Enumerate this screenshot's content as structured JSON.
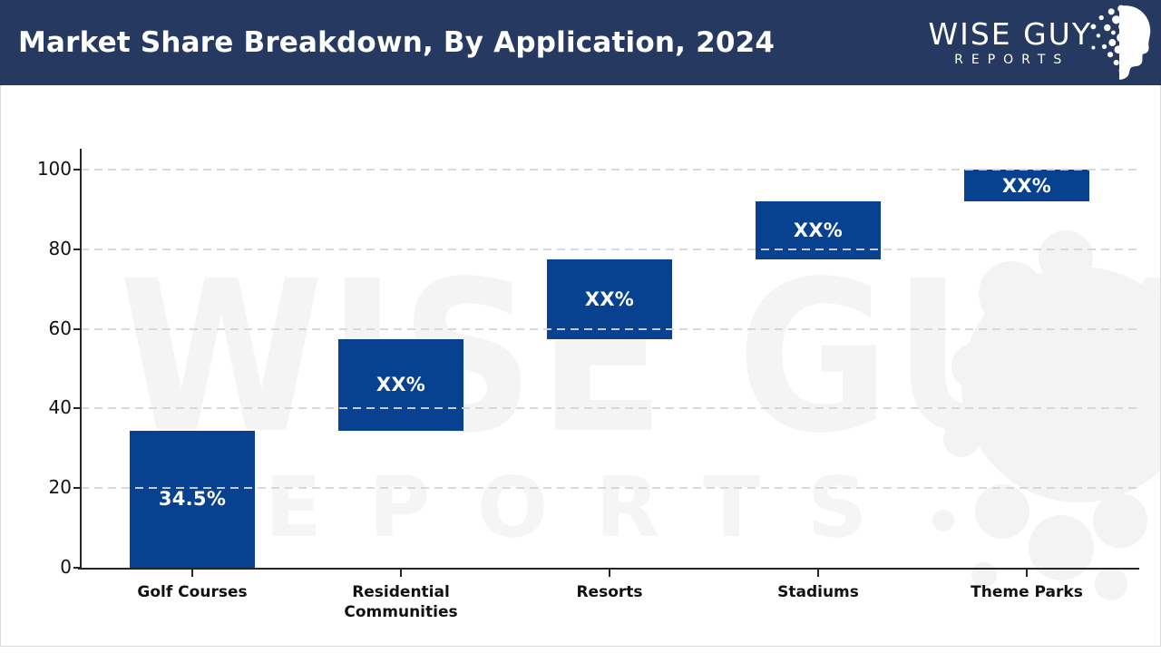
{
  "header": {
    "title": "Market Share Breakdown, By Application, 2024",
    "bg_color": "#263a61",
    "logo": {
      "wordmark": "WISE GUY",
      "subtext": "REPORTS"
    }
  },
  "watermark": {
    "line1": "WISE GUY",
    "line2": "REPORTS"
  },
  "chart_data": {
    "type": "bar",
    "variant": "floating_segment_bars",
    "title": "Market Share Breakdown, By Application, 2024",
    "categories": [
      "Golf Courses",
      "Residential Communities",
      "Resorts",
      "Stadiums",
      "Theme Parks"
    ],
    "segments": [
      {
        "category": "Golf Courses",
        "start": 0,
        "end": 34.5,
        "label": "34.5%"
      },
      {
        "category": "Residential Communities",
        "start": 34.5,
        "end": 57.5,
        "label": "XX%"
      },
      {
        "category": "Resorts",
        "start": 57.5,
        "end": 77.5,
        "label": "XX%"
      },
      {
        "category": "Stadiums",
        "start": 77.5,
        "end": 92,
        "label": "XX%"
      },
      {
        "category": "Theme Parks",
        "start": 92,
        "end": 100,
        "label": "XX%"
      }
    ],
    "y_ticks": [
      0,
      20,
      40,
      60,
      80,
      100
    ],
    "ylim": [
      0,
      100
    ],
    "grid": "dashed-horizontal",
    "legend": "none",
    "bar_color": "#074190",
    "bar_label_color": "#ffffff",
    "xlabel": "",
    "ylabel": ""
  }
}
